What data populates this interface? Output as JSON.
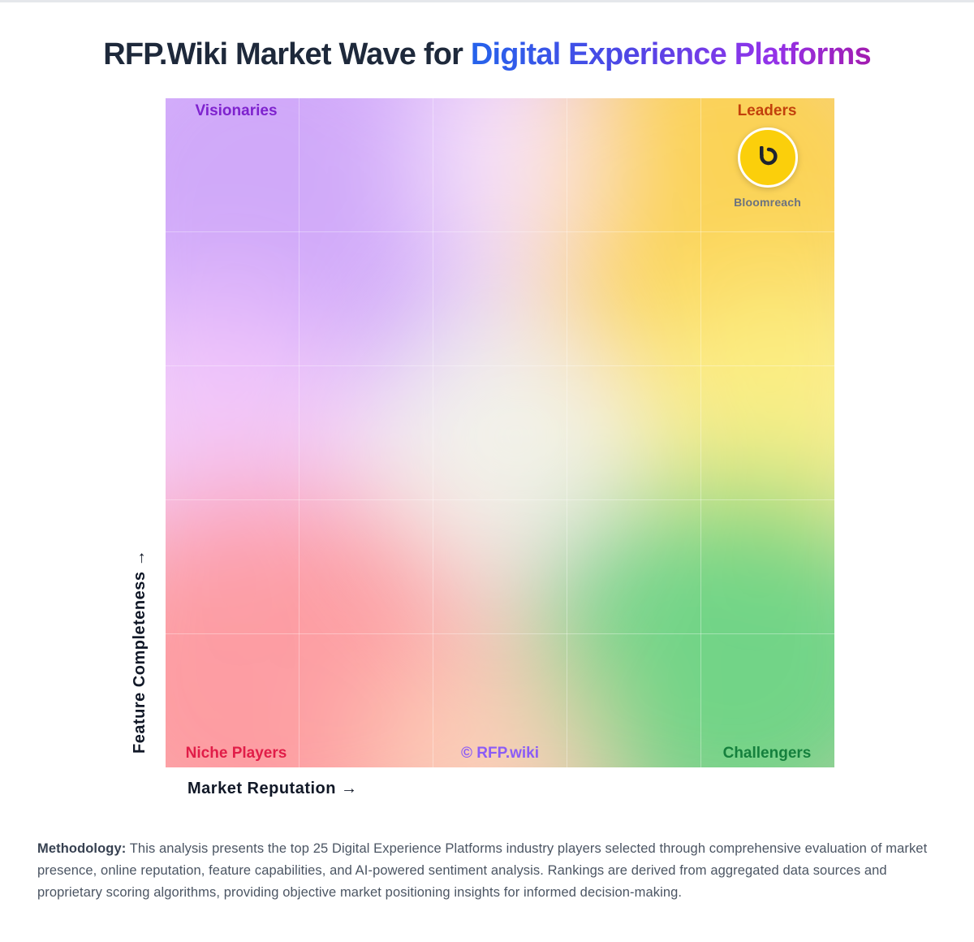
{
  "header": {
    "title_prefix": "RFP.Wiki Market Wave for ",
    "title_highlight": "Digital Experience Platforms"
  },
  "chart_data": {
    "type": "scatter",
    "title": "RFP.Wiki Market Wave for Digital Experience Platforms",
    "xlabel": "Market Reputation →",
    "ylabel": "Feature Completeness →",
    "xlim": [
      0,
      1
    ],
    "ylim": [
      0,
      1
    ],
    "quadrants": {
      "top_left": "Visionaries",
      "top_right": "Leaders",
      "bottom_left": "Niche Players",
      "bottom_right": "Challengers"
    },
    "watermark": "© RFP.wiki",
    "points": [
      {
        "name": "Bloomreach",
        "x": 0.9,
        "y": 0.91,
        "quadrant": "Leaders",
        "logo_color": "#fbcf0b",
        "logo_glyph": "b"
      }
    ]
  },
  "colors": {
    "visionaries": "#7e22ce",
    "leaders": "#c2410c",
    "niche": "#e11d48",
    "challengers": "#15803d",
    "watermark": "#8b5cf6"
  },
  "methodology": {
    "label": "Methodology:",
    "text": " This analysis presents the top 25 Digital Experience Platforms industry players selected through comprehensive evaluation of market presence, online reputation, feature capabilities, and AI-powered sentiment analysis. Rankings are derived from aggregated data sources and proprietary scoring algorithms, providing objective market positioning insights for informed decision-making."
  }
}
